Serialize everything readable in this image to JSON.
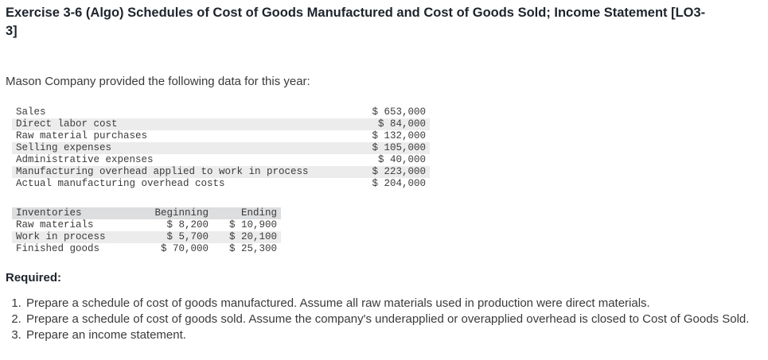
{
  "title": "Exercise 3-6 (Algo) Schedules of Cost of Goods Manufactured and Cost of Goods Sold; Income Statement [LO3-3]",
  "intro": "Mason Company provided the following data for this year:",
  "company_data": {
    "rows": [
      {
        "label": "Sales",
        "amount": "$ 653,000"
      },
      {
        "label": "Direct labor cost",
        "amount": "$ 84,000"
      },
      {
        "label": "Raw material purchases",
        "amount": "$ 132,000"
      },
      {
        "label": "Selling expenses",
        "amount": "$ 105,000"
      },
      {
        "label": "Administrative expenses",
        "amount": "$ 40,000"
      },
      {
        "label": "Manufacturing overhead applied to work in process",
        "amount": "$ 223,000"
      },
      {
        "label": "Actual manufacturing overhead costs",
        "amount": "$ 204,000"
      }
    ]
  },
  "inventories": {
    "headers": {
      "label": "Inventories",
      "beginning": "Beginning",
      "ending": "Ending"
    },
    "rows": [
      {
        "label": "Raw materials",
        "beginning": "$ 8,200",
        "ending": "$ 10,900"
      },
      {
        "label": "Work in process",
        "beginning": "$ 5,700",
        "ending": "$ 20,100"
      },
      {
        "label": "Finished goods",
        "beginning": "$ 70,000",
        "ending": "$ 25,300"
      }
    ]
  },
  "required_label": "Required:",
  "requirements": [
    "Prepare a schedule of cost of goods manufactured. Assume all raw materials used in production were direct materials.",
    "Prepare a schedule of cost of goods sold. Assume the company's underapplied or overapplied overhead is closed to Cost of Goods Sold.",
    "Prepare an income statement."
  ]
}
